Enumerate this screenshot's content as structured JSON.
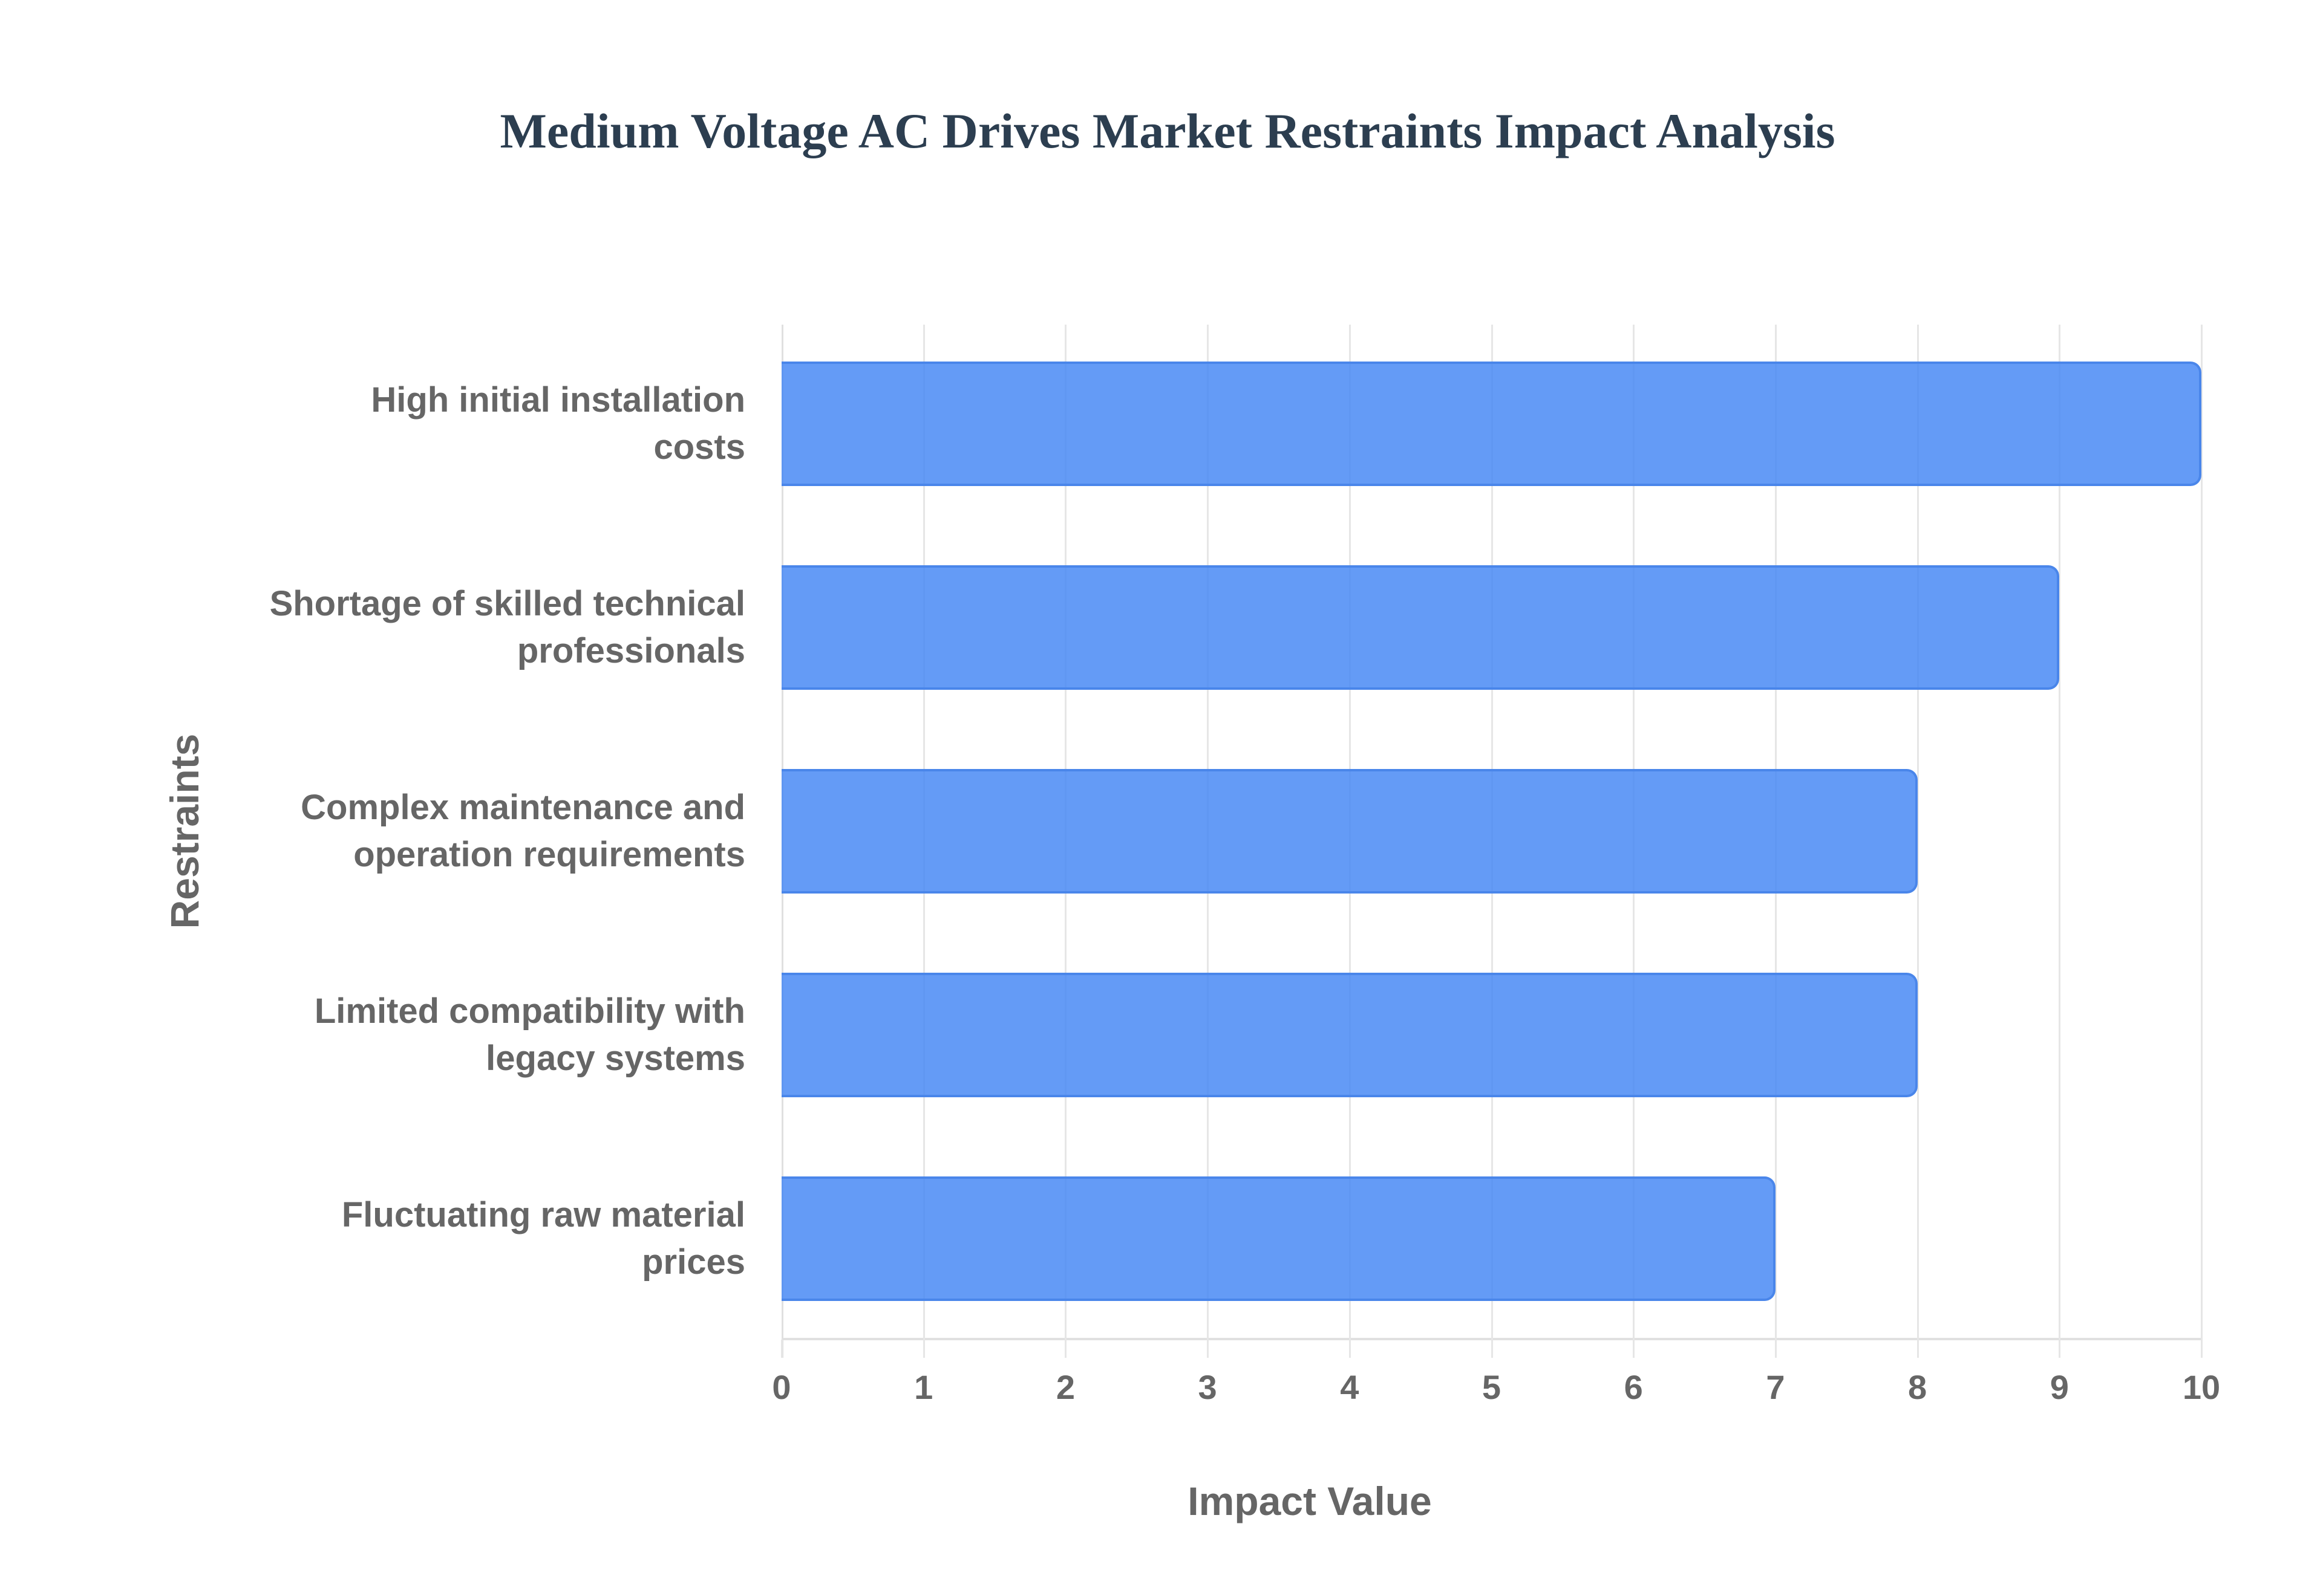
{
  "chart_data": {
    "type": "bar",
    "orientation": "horizontal",
    "title": "Medium Voltage AC Drives Market Restraints Impact Analysis",
    "xlabel": "Impact Value",
    "ylabel": "Restraints",
    "categories": [
      "High initial installation costs",
      "Shortage of skilled technical professionals",
      "Complex maintenance and operation requirements",
      "Limited compatibility with legacy systems",
      "Fluctuating raw material prices"
    ],
    "values": [
      10,
      9,
      8,
      8,
      7
    ],
    "xlim": [
      0,
      10
    ],
    "xticks": [
      "0",
      "1",
      "2",
      "3",
      "4",
      "5",
      "6",
      "7",
      "8",
      "9",
      "10"
    ],
    "grid": true,
    "legend": "none",
    "bar_color": "#4285f4"
  },
  "rows": [
    {
      "line1": "High initial installation",
      "line2": "costs",
      "value": 10
    },
    {
      "line1": "Shortage of skilled technical",
      "line2": "professionals",
      "value": 9
    },
    {
      "line1": "Complex maintenance and",
      "line2": "operation requirements",
      "value": 8
    },
    {
      "line1": "Limited compatibility with",
      "line2": "legacy systems",
      "value": 8
    },
    {
      "line1": "Fluctuating raw material",
      "line2": "prices",
      "value": 7
    }
  ]
}
